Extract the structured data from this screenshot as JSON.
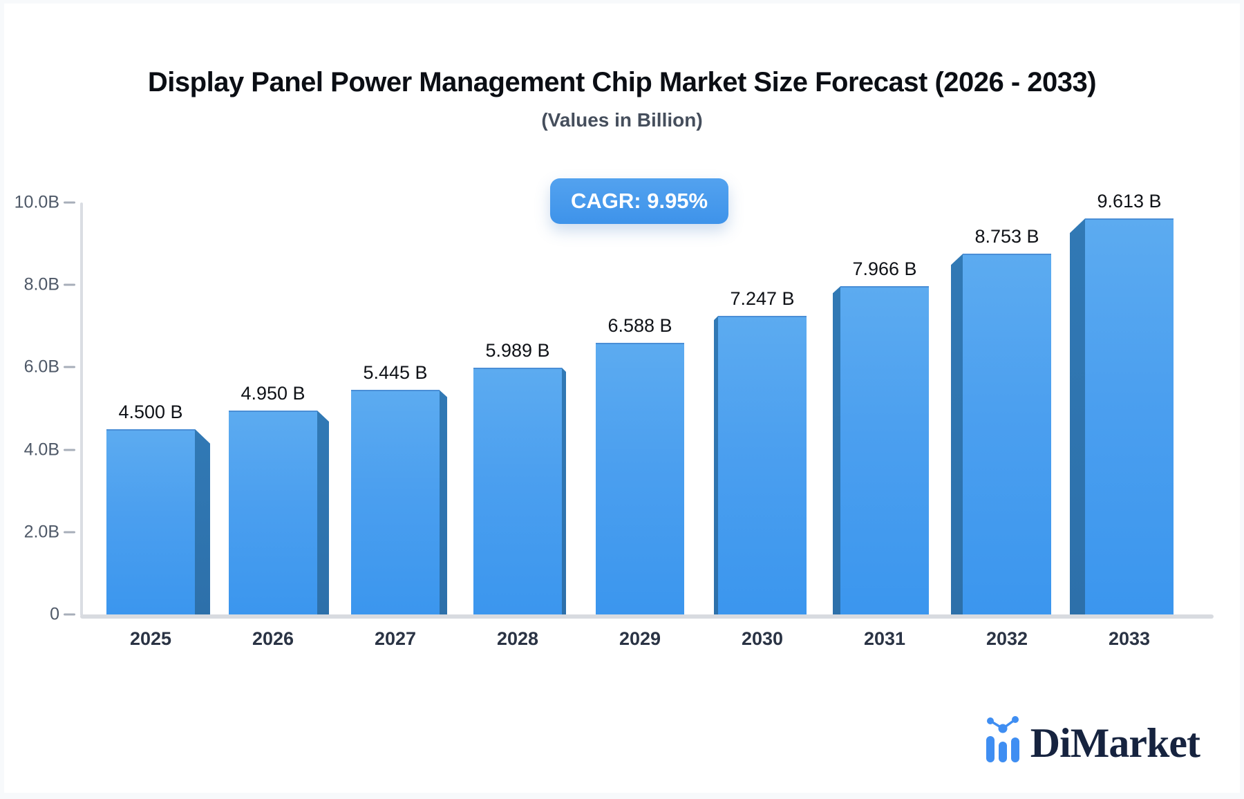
{
  "page": {
    "background": "#f7f9fb",
    "card_background": "#ffffff"
  },
  "header": {
    "title": "Display Panel Power Management Chip Market Size Forecast (2026 - 2033)",
    "subtitle": "(Values in Billion)"
  },
  "badge": {
    "label": "CAGR: 9.95%",
    "background": "#4398ec",
    "text_color": "#ffffff"
  },
  "chart_data": {
    "type": "bar",
    "title": "Display Panel Power Management Chip Market Size Forecast (2026 - 2033)",
    "subtitle": "(Values in Billion)",
    "unit": "Billion",
    "categories": [
      "2025",
      "2026",
      "2027",
      "2028",
      "2029",
      "2030",
      "2031",
      "2032",
      "2033"
    ],
    "values": [
      4.5,
      4.95,
      5.445,
      5.989,
      6.588,
      7.247,
      7.966,
      8.753,
      9.613
    ],
    "value_labels": [
      "4.500 B",
      "4.950 B",
      "5.445 B",
      "5.989 B",
      "6.588 B",
      "7.247 B",
      "7.966 B",
      "8.753 B",
      "9.613 B"
    ],
    "cagr": "9.95%",
    "ylim": [
      0,
      10
    ],
    "y_ticks": [
      "10.0B",
      "8.0B",
      "6.0B",
      "4.0B",
      "2.0B",
      "0"
    ],
    "y_tick_values": [
      10,
      8,
      6,
      4,
      2,
      0
    ],
    "grid": false,
    "legend": false,
    "style_3d": true,
    "bar_color_top": "#5cabf0",
    "bar_color_bottom": "#3b96ee",
    "bar_side_color": "#2e74af"
  },
  "logo": {
    "text": "DiMarket",
    "icon": "bar-line-chart-icon",
    "text_color": "#16233f",
    "accent_color": "#3f8ef2"
  }
}
